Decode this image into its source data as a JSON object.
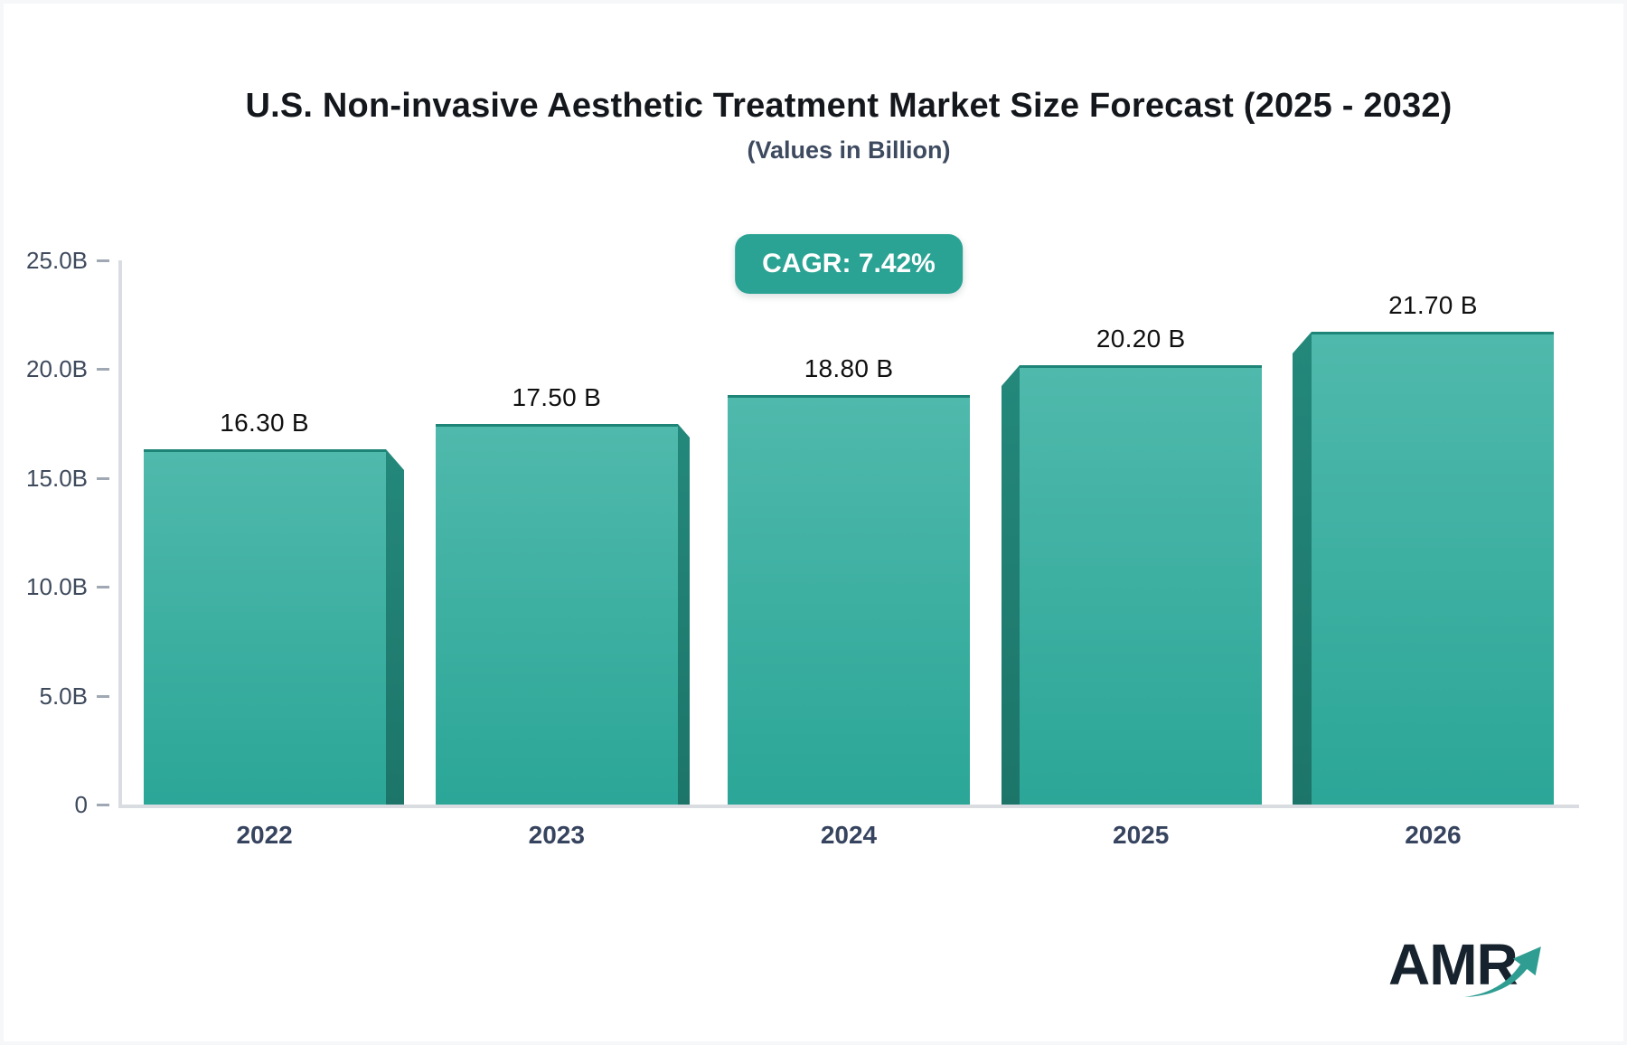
{
  "header": {
    "title": "U.S. Non-invasive Aesthetic Treatment Market Size Forecast (2025 - 2032)",
    "subtitle": "(Values in Billion)",
    "cagr_badge": "CAGR: 7.42%"
  },
  "logo": {
    "text": "AMR"
  },
  "chart_data": {
    "type": "bar",
    "title": "U.S. Non-invasive Aesthetic Treatment Market Size Forecast (2025 - 2032)",
    "subtitle": "(Values in Billion)",
    "annotation": "CAGR: 7.42%",
    "categories": [
      "2022",
      "2023",
      "2024",
      "2025",
      "2026"
    ],
    "values": [
      16.3,
      17.5,
      18.8,
      20.2,
      21.7
    ],
    "bar_labels": [
      "16.30 B",
      "17.50 B",
      "18.80 B",
      "20.20 B",
      "21.70 B"
    ],
    "y_ticks": [
      {
        "value": 25,
        "label": "25.0B"
      },
      {
        "value": 20,
        "label": "20.0B"
      },
      {
        "value": 15,
        "label": "15.0B"
      },
      {
        "value": 10,
        "label": "10.0B"
      },
      {
        "value": 5,
        "label": "5.0B"
      },
      {
        "value": 0,
        "label": "0"
      }
    ],
    "ylim": [
      0,
      25
    ],
    "xlabel": "",
    "ylabel": "",
    "grid": false,
    "legend": null,
    "colors": {
      "bar_gradient_top": "#4FB9AC",
      "bar_gradient_bottom": "#2BA697",
      "bar_side_3d": "#1F7D71",
      "bar_top_cap": "#1E8478",
      "badge_background": "#2BA394",
      "badge_text": "#FFFFFF",
      "axis_line": "#D9DCE1",
      "tick_mark": "#9FA8B3",
      "y_label_text": "#3E4A5C",
      "x_label_text": "#37445F",
      "value_label_text": "#101010",
      "title_text": "#14171C",
      "subtitle_text": "#3D4A5F",
      "logo_text": "#16222D",
      "logo_arrow": "#2F9D92"
    }
  }
}
